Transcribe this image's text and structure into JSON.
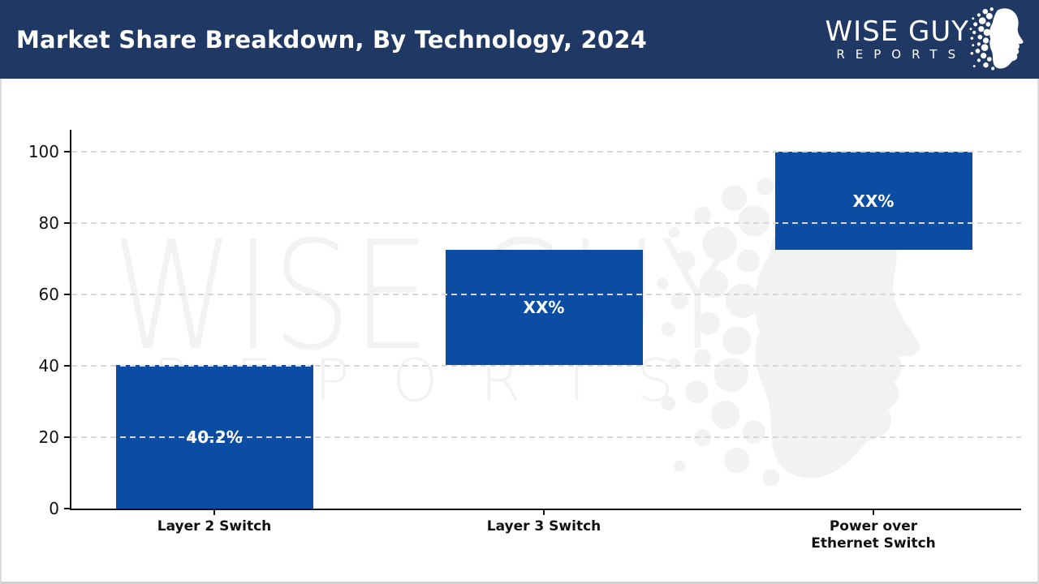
{
  "header": {
    "title": "Market Share Breakdown, By Technology, 2024",
    "bg_color": "#1f3864",
    "logo": {
      "wordmark": "WISE GUY",
      "subtext": "REPORTS"
    }
  },
  "watermark": {
    "line1": "WISE GUY",
    "line2": "REPORTS"
  },
  "chart_data": {
    "type": "bar",
    "variant": "waterfall-stacked",
    "title": "Market Share Breakdown, By Technology, 2024",
    "categories": [
      "Layer 2 Switch",
      "Layer 3 Switch",
      "Power over Ethernet Switch"
    ],
    "series": [
      {
        "name": "Market share (%)",
        "segments": [
          {
            "category": "Layer 2 Switch",
            "base": 0,
            "top": 40.2,
            "label": "40.2%"
          },
          {
            "category": "Layer 3 Switch",
            "base": 40.2,
            "top": 72.5,
            "label": "XX%"
          },
          {
            "category": "Power over Ethernet Switch",
            "base": 72.5,
            "top": 100,
            "label": "XX%"
          }
        ]
      }
    ],
    "xlabel": "",
    "ylabel": "",
    "ylim": [
      0,
      100
    ],
    "yticks": [
      0,
      20,
      40,
      60,
      80,
      100
    ],
    "grid": {
      "axis": "y",
      "style": "dashed",
      "color": "#d7d7d7"
    },
    "legend": "none",
    "bar_color": "#0b4da2",
    "bar_label_color": "#ffffff"
  }
}
